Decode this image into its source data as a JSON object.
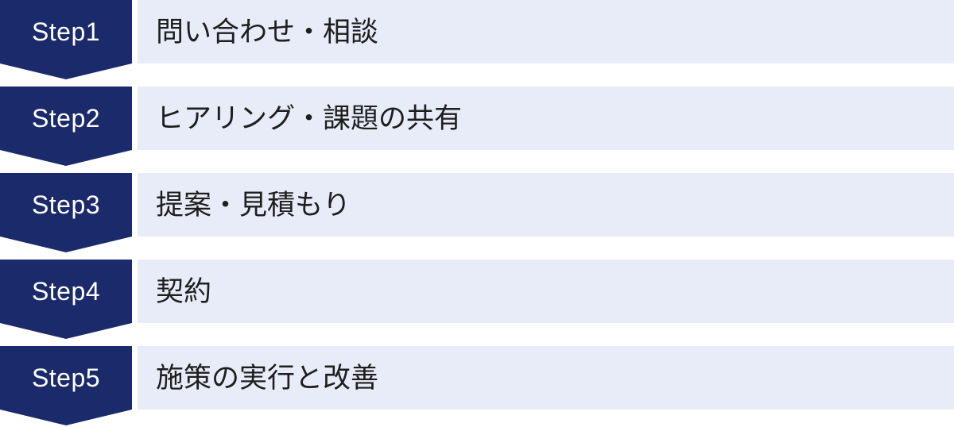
{
  "diagram": {
    "type": "process-flow",
    "steps": [
      {
        "label": "Step1",
        "description": "問い合わせ・相談"
      },
      {
        "label": "Step2",
        "description": "ヒアリング・課題の共有"
      },
      {
        "label": "Step3",
        "description": "提案・見積もり"
      },
      {
        "label": "Step4",
        "description": "契約"
      },
      {
        "label": "Step5",
        "description": "施策の実行と改善"
      }
    ],
    "colors": {
      "step_badge_bg": "#1B2A6B",
      "step_badge_text": "#FFFFFF",
      "description_bar_bg": "#E7ECF8",
      "description_text": "#1E1E1E",
      "background": "#FFFFFF"
    }
  }
}
